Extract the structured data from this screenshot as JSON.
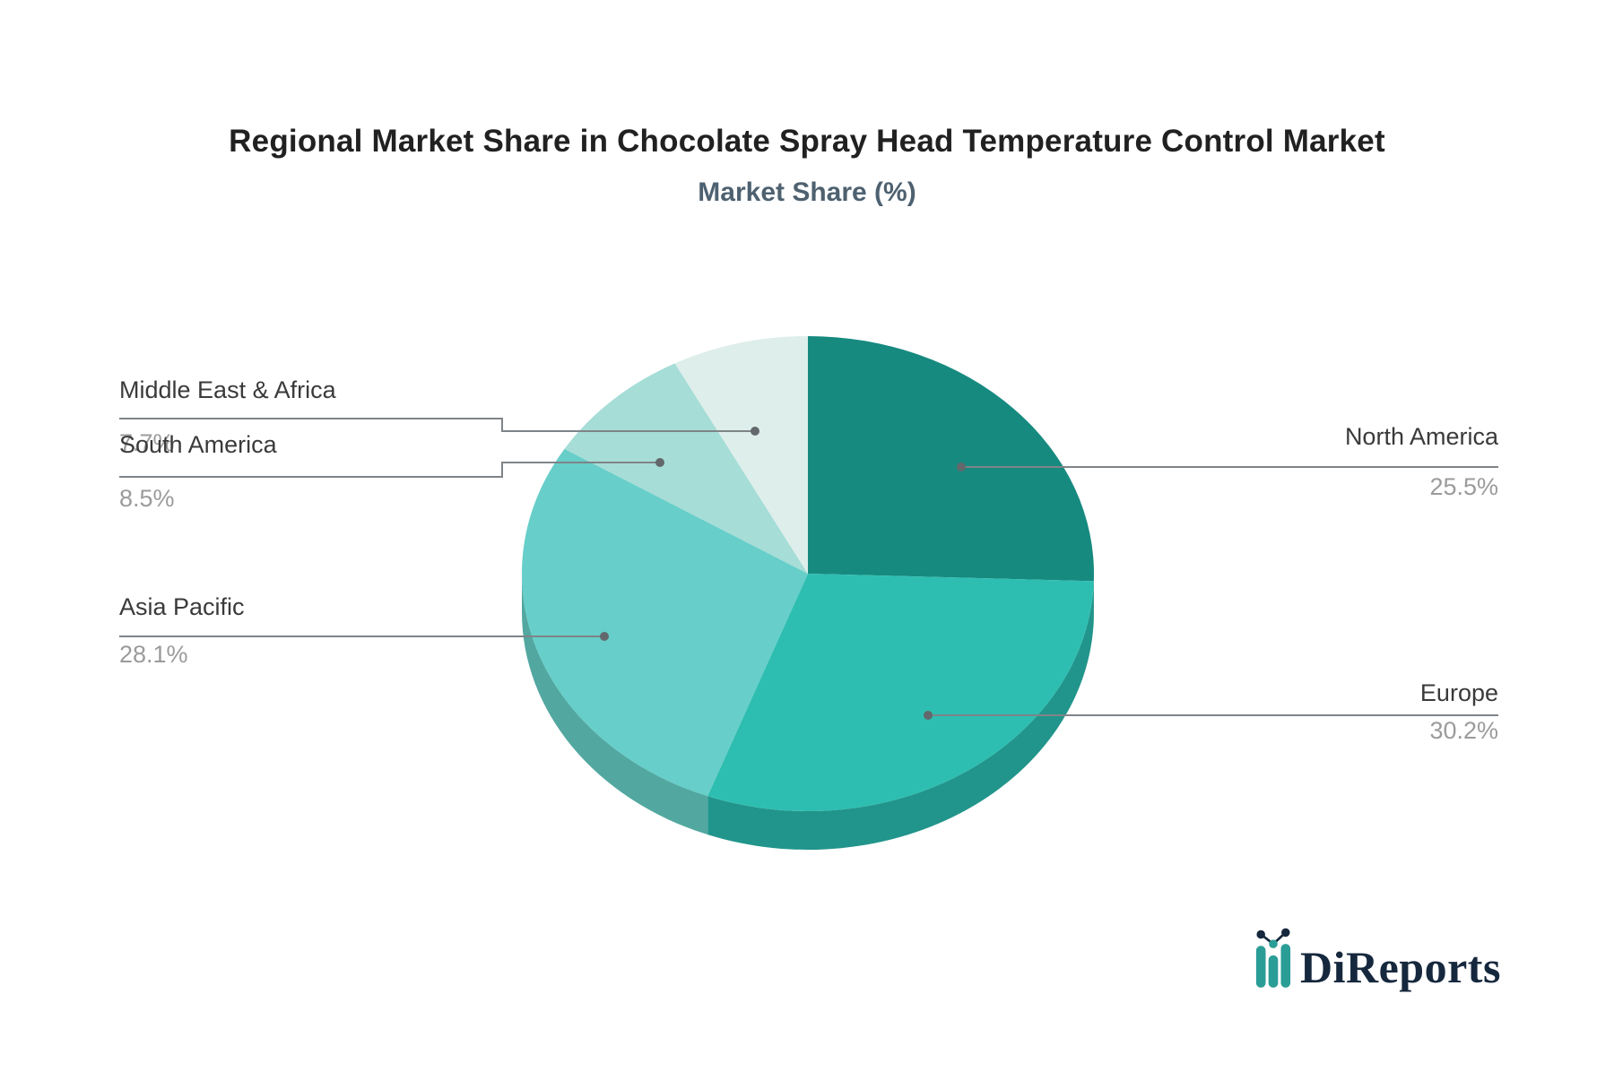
{
  "chart_data": {
    "type": "pie",
    "title": "Regional Market Share in Chocolate Spray Head Temperature Control Market",
    "subtitle": "Market Share (%)",
    "effect": "3d",
    "start_angle_deg": 0,
    "direction": "clockwise",
    "legend_position": "none",
    "label_style": "callout-with-leader-lines",
    "background_color": "#FFFFFF",
    "slices": [
      {
        "label": "North America",
        "value": 25.5,
        "display": "25.5%",
        "color": "#178A80",
        "side_color": "#11695F"
      },
      {
        "label": "Europe",
        "value": 30.2,
        "display": "30.2%",
        "color": "#2EBEB1",
        "side_color": "#21958B"
      },
      {
        "label": "Asia Pacific",
        "value": 28.1,
        "display": "28.1%",
        "color": "#67CEC9",
        "side_color": "#52A8A0"
      },
      {
        "label": "South America",
        "value": 8.5,
        "display": "8.5%",
        "color": "#A6DDD7",
        "side_color": "#85B8B2"
      },
      {
        "label": "Middle East & Africa",
        "value": 7.7,
        "display": "7.7%",
        "color": "#DEEEEB",
        "side_color": "#B9CCC9"
      }
    ]
  },
  "leader_style": {
    "line_color": "#7F8487",
    "dot_color": "#62686B"
  },
  "logo": {
    "text": "DiReports",
    "icon": "bar-chart-logo-icon",
    "text_color": "#16283D",
    "accent_color": "#2A9D96"
  }
}
